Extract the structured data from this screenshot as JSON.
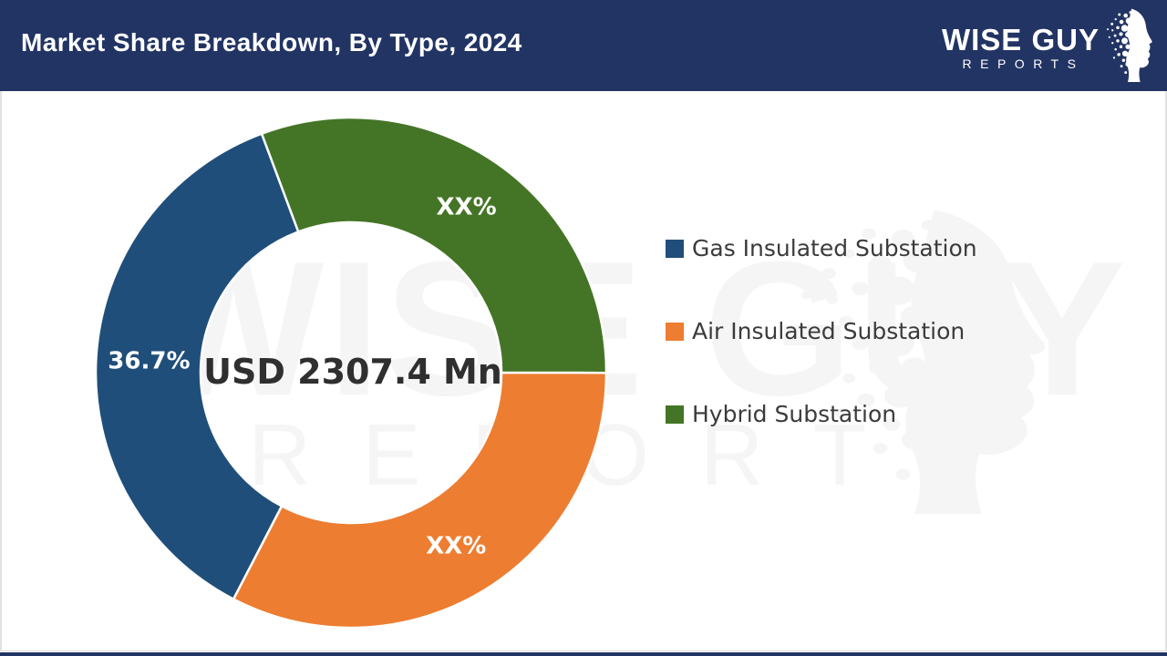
{
  "header": {
    "title": "Market Share Breakdown, By Type, 2024",
    "logo": {
      "line1": "WISE GUY",
      "line2": "REPORTS"
    }
  },
  "watermark": {
    "line1": "WISE GUY",
    "line2": "REPORTS"
  },
  "chart_data": {
    "type": "pie",
    "subtype": "donut",
    "title": "Market Share Breakdown, By Type, 2024",
    "center_label": "USD 2307.4 Mn",
    "legend_position": "right",
    "start_angle_deg": 207.4,
    "draw_order": [
      0,
      2,
      1
    ],
    "geometry": {
      "outer_radius": 280,
      "inner_radius": 165,
      "label_radius": 222,
      "gap_stroke": "#ffffff"
    },
    "segments": [
      {
        "label": "Gas Insulated Substation",
        "display_value": "36.7%",
        "pct_estimate": 36.7,
        "color": "#204e7a"
      },
      {
        "label": "Air Insulated Substation",
        "display_value": "XX%",
        "pct_estimate": 32.6,
        "color": "#ed7d31"
      },
      {
        "label": "Hybrid Substation",
        "display_value": "XX%",
        "pct_estimate": 30.7,
        "color": "#447526"
      }
    ]
  },
  "colors": {
    "header_bg": "#223463",
    "footer_bg": "#223463",
    "slice_label_text": "#ffffff",
    "center_text": "#2f2f2f",
    "legend_text": "#3b3b3b",
    "watermark": "#f5f5f5"
  }
}
